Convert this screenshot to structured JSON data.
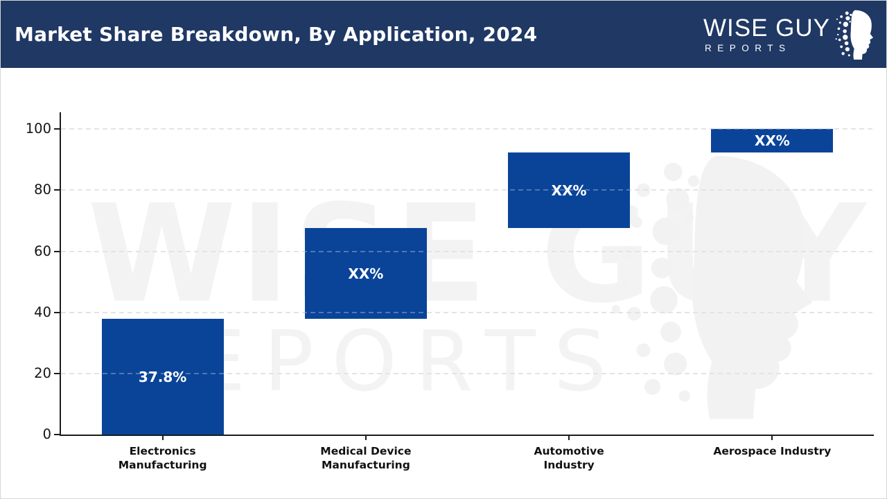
{
  "header": {
    "title": "Market Share Breakdown, By Application, 2024",
    "background": "#1f3864",
    "logo": {
      "wordmark": "WISE GUY",
      "subtext": "REPORTS"
    }
  },
  "watermark": {
    "line1": "WISE GUY",
    "line2": "REPORTS"
  },
  "colors": {
    "header_bg": "#1f3864",
    "bar": "#0a4499",
    "gridline": "#d9d9d9",
    "axis": "#1c1c1c",
    "watermark": "#f2f2f2",
    "title_text": "#ffffff"
  },
  "chart_data": {
    "type": "bar",
    "subtype": "waterfall-style floating bars",
    "title": "Market Share Breakdown, By Application, 2024",
    "categories": [
      "Electronics\nManufacturing",
      "Medical Device\nManufacturing",
      "Automotive\nIndustry",
      "Aerospace Industry"
    ],
    "segments": [
      {
        "start": 0,
        "end": 37.8,
        "label": "37.8%"
      },
      {
        "start": 37.8,
        "end": 67.5,
        "label": "XX%"
      },
      {
        "start": 67.5,
        "end": 92.3,
        "label": "XX%"
      },
      {
        "start": 92.3,
        "end": 100,
        "label": "XX%"
      }
    ],
    "xlabel": "",
    "ylabel": "",
    "y_ticks": [
      0,
      20,
      40,
      60,
      80,
      100
    ],
    "ylim": [
      0,
      105.5
    ],
    "bar_color": "#0a4499",
    "grid": "horizontal-dashed",
    "legend": "none"
  }
}
